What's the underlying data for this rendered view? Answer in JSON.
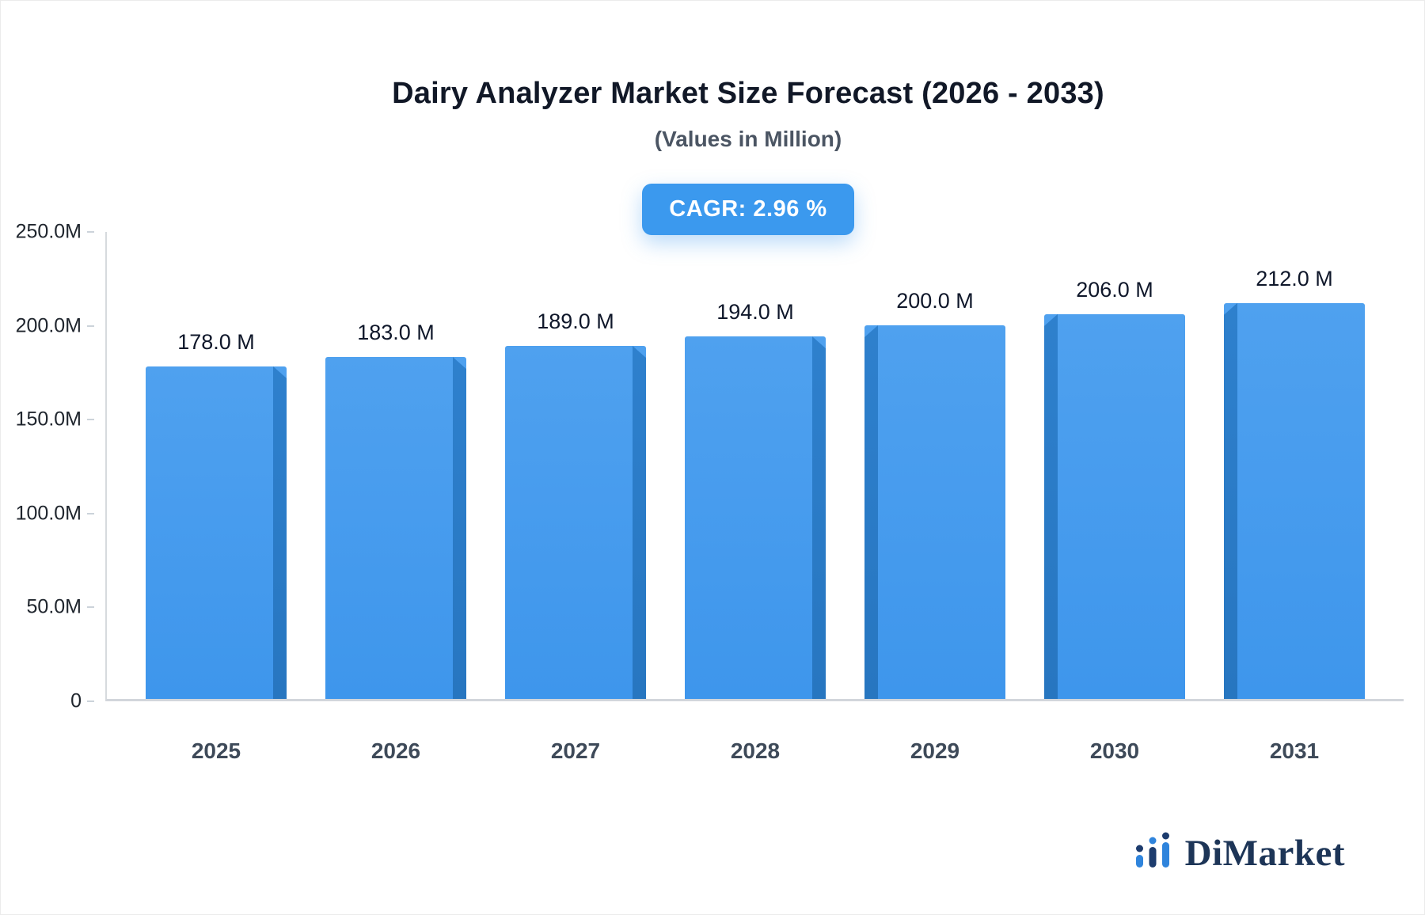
{
  "chart_data": {
    "type": "bar",
    "title": "Dairy Analyzer Market Size Forecast (2026 - 2033)",
    "subtitle": "(Values in Million)",
    "cagr_badge": "CAGR: 2.96 %",
    "categories": [
      "2025",
      "2026",
      "2027",
      "2028",
      "2029",
      "2030",
      "2031"
    ],
    "values": [
      178.0,
      183.0,
      189.0,
      194.0,
      200.0,
      206.0,
      212.0
    ],
    "value_labels": [
      "178.0 M",
      "183.0 M",
      "189.0 M",
      "194.0 M",
      "200.0 M",
      "206.0 M",
      "212.0 M"
    ],
    "y_ticks": [
      {
        "label": "250.0M",
        "value": 250
      },
      {
        "label": "200.0M",
        "value": 200
      },
      {
        "label": "150.0M",
        "value": 150
      },
      {
        "label": "100.0M",
        "value": 100
      },
      {
        "label": "50.0M",
        "value": 50
      },
      {
        "label": "0",
        "value": 0
      }
    ],
    "ylim": [
      0,
      250
    ],
    "xlabel": "",
    "ylabel": "",
    "grid": false,
    "legend_position": "none",
    "colors": {
      "bar_face": "#3E96EC",
      "bar_side": "#2B7CC9",
      "badge_bg": "#3B99EE",
      "axis_line": "#D5DAE0"
    }
  },
  "branding": {
    "logo_text": "DiMarket",
    "logo_icon": "bar-chart-dots-icon"
  }
}
